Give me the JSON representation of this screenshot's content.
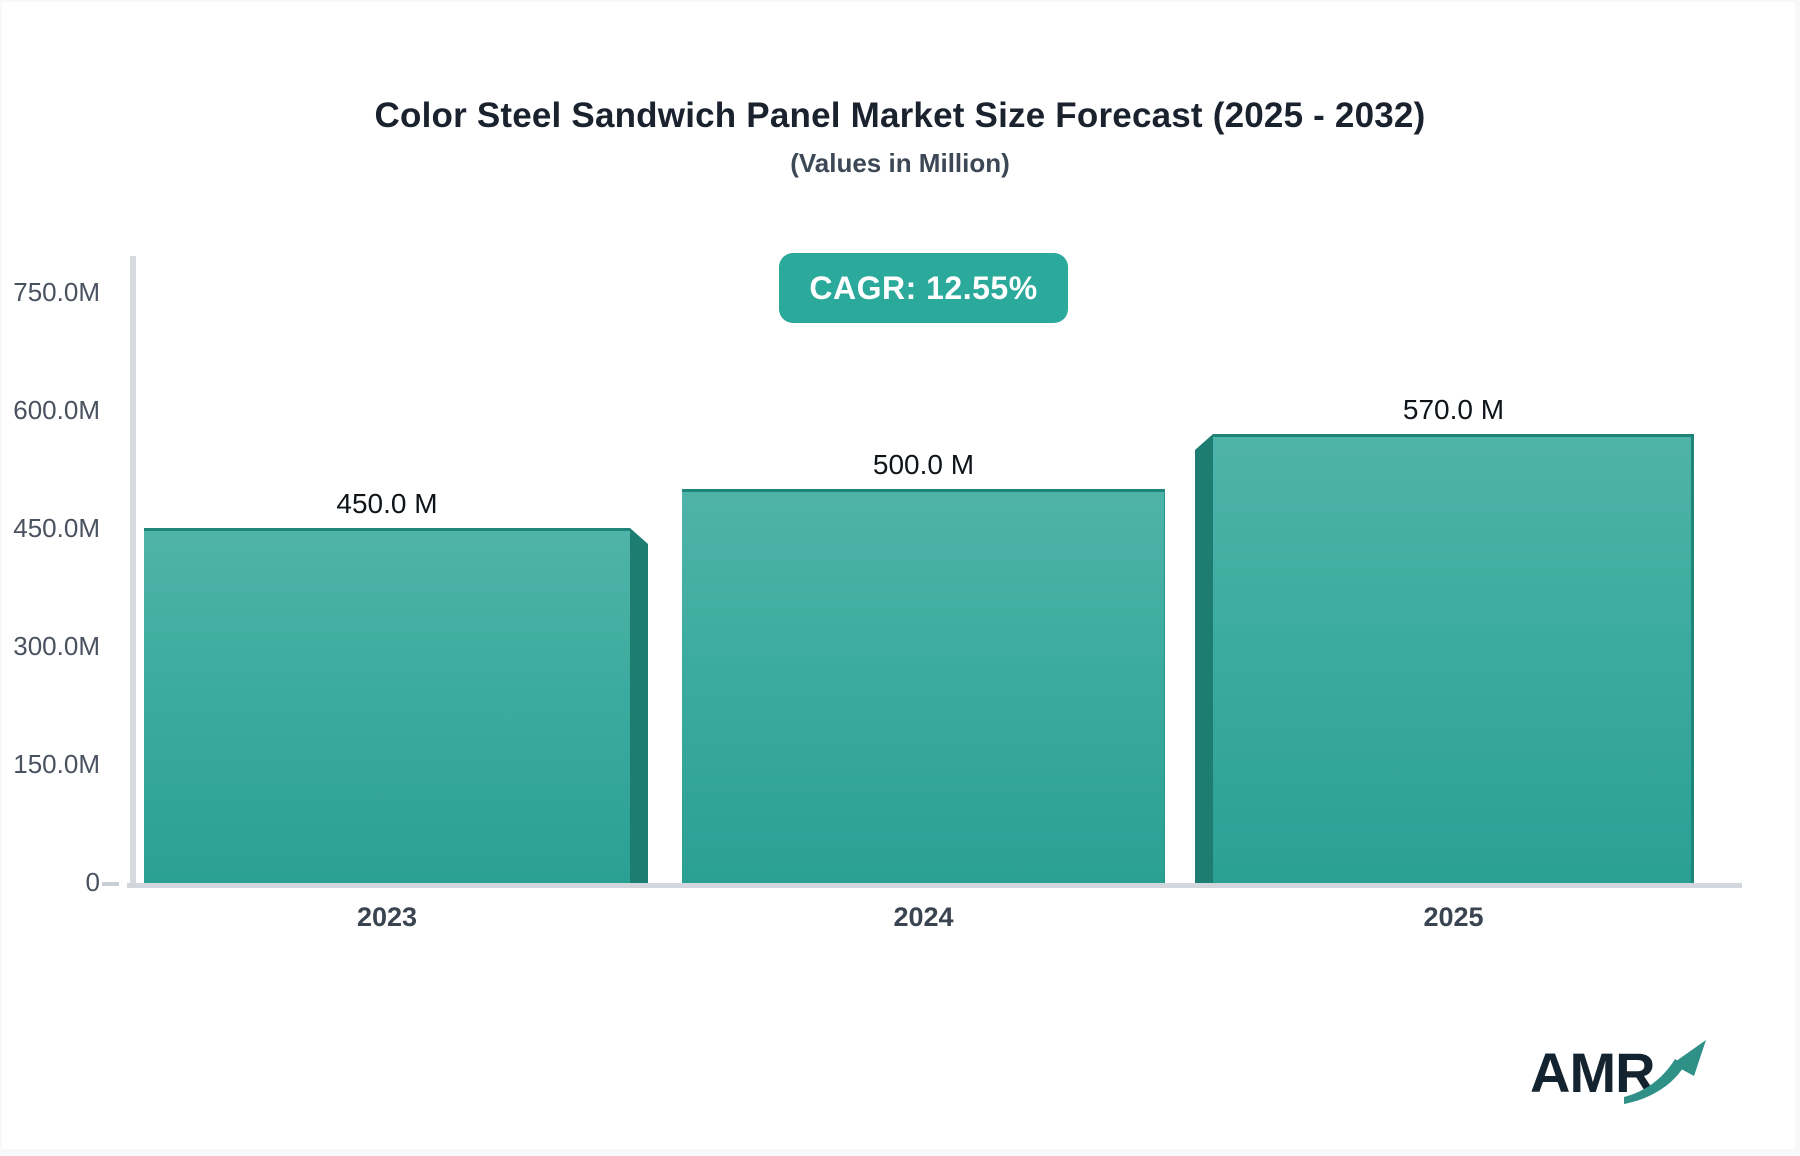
{
  "page": {
    "background": "#f7f8fa",
    "card_background": "#ffffff"
  },
  "header": {
    "title": "Color Steel Sandwich Panel Market Size Forecast (2025 - 2032)",
    "subtitle": "(Values in Million)"
  },
  "cagr_badge": {
    "label": "CAGR: 12.55%",
    "background": "#2ba99b",
    "text_color": "#ffffff"
  },
  "logo": {
    "text": "AMR",
    "arrow_color": "#2e9087",
    "text_color": "#132430"
  },
  "colors": {
    "bar_gradient_top": "#4fb3a9",
    "bar_gradient_bottom": "#2aa093",
    "bar_side_3d": "#1e7d71",
    "bar_top_edge": "#1e8578",
    "axis_line": "#d6d9de",
    "tick_text": "#4a5260",
    "category_text": "#3a4450",
    "value_text": "#0f1419",
    "title_text": "#1a222e",
    "subtitle_text": "#3c4856"
  },
  "chart_data": {
    "type": "bar",
    "title": "Color Steel Sandwich Panel Market Size Forecast (2025 - 2032)",
    "subtitle": "(Values in Million)",
    "cagr": "12.55%",
    "categories": [
      "2023",
      "2024",
      "2025"
    ],
    "values": [
      450.0,
      500.0,
      570.0
    ],
    "value_labels": [
      "450.0 M",
      "500.0 M",
      "570.0 M"
    ],
    "unit": "Million (M)",
    "xlabel": "",
    "ylabel": "",
    "ylim": [
      0,
      750
    ],
    "ytick_labels": [
      "750.0M",
      "600.0M",
      "450.0M",
      "300.0M",
      "150.0M",
      "0"
    ],
    "grid": false,
    "legend": "none",
    "bar_style": "3d-extruded, teal vertical gradient, single series"
  }
}
